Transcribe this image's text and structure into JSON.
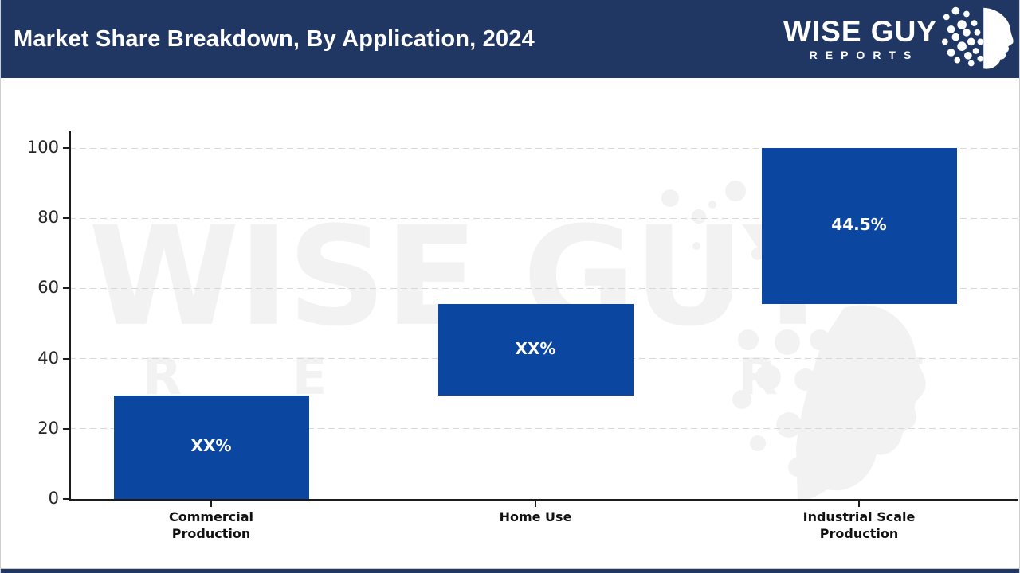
{
  "header": {
    "bg_color": "#203763",
    "title": "Market Share Breakdown, By Application, 2024",
    "logo": {
      "line1": "WISE GUY",
      "line2": "REPORTS"
    }
  },
  "watermark": {
    "line1": "WISE GUY",
    "line2": "R E P O R T S"
  },
  "chart_data": {
    "type": "bar",
    "subtype": "waterfall (segments stack to 100%)",
    "title": "Market Share Breakdown, By Application, 2024",
    "categories": [
      "Commercial Production",
      "Home Use",
      "Industrial Scale Production"
    ],
    "category_lines": [
      [
        "Commercial",
        "Production"
      ],
      [
        "Home Use"
      ],
      [
        "Industrial Scale",
        "Production"
      ]
    ],
    "segments": [
      {
        "category": "Commercial Production",
        "start": 0,
        "end": 29.5,
        "value": 29.5,
        "value_label": "XX%"
      },
      {
        "category": "Home Use",
        "start": 29.5,
        "end": 55.5,
        "value": 26.0,
        "value_label": "XX%"
      },
      {
        "category": "Industrial Scale Production",
        "start": 55.5,
        "end": 100,
        "value": 44.5,
        "value_label": "44.5%"
      }
    ],
    "yticks": [
      0,
      20,
      40,
      60,
      80,
      100
    ],
    "ylim": [
      0,
      105
    ],
    "ylabel": "",
    "xlabel": "",
    "grid": "dashed horizontal gridlines",
    "legend": "none",
    "bar_color": "#0b46a1",
    "axis_color": "#1c1c1c",
    "gridline_color": "#d8d8d8"
  }
}
